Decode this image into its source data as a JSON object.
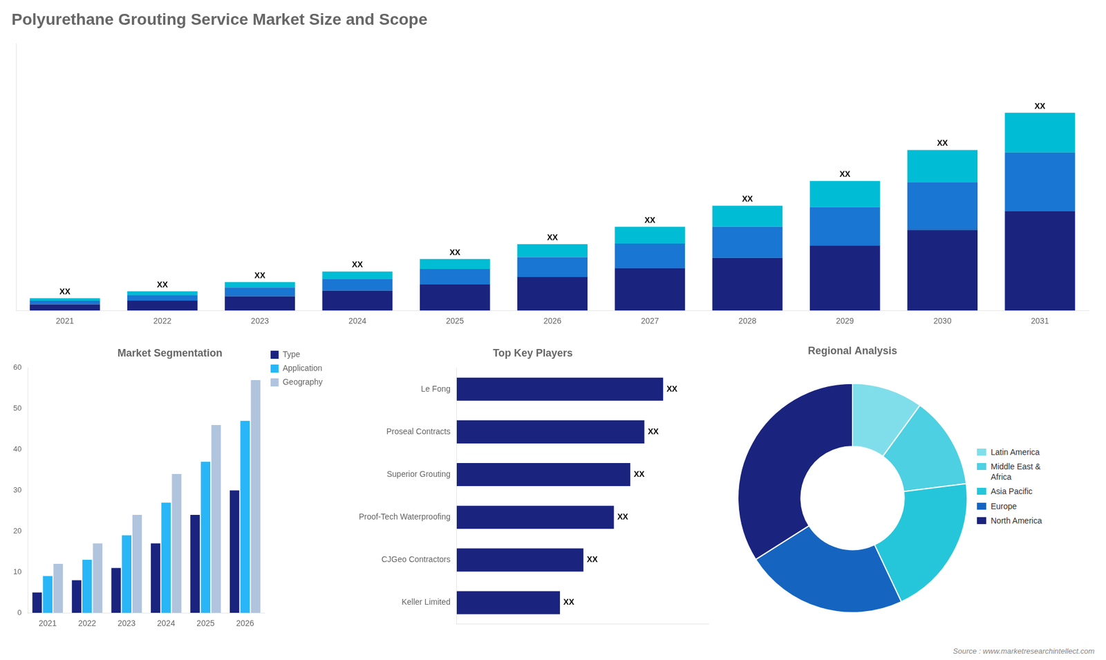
{
  "chart_data": [
    {
      "type": "bar",
      "title": "Polyurethane Grouting Service Market Size and Scope",
      "categories": [
        "2021",
        "2022",
        "2023",
        "2024",
        "2025",
        "2026",
        "2027",
        "2028",
        "2029",
        "2030",
        "2031"
      ],
      "series": [
        {
          "color": "#1a237e",
          "values": [
            1.0,
            1.6,
            2.3,
            3.2,
            4.2,
            5.4,
            6.8,
            8.5,
            10.5,
            13.0,
            16.0
          ]
        },
        {
          "color": "#1976d2",
          "values": [
            0.6,
            0.9,
            1.4,
            1.9,
            2.5,
            3.2,
            4.0,
            5.0,
            6.2,
            7.7,
            9.5
          ]
        },
        {
          "color": "#00bcd4",
          "values": [
            0.4,
            0.6,
            0.9,
            1.2,
            1.6,
            2.1,
            2.7,
            3.4,
            4.2,
            5.2,
            6.4
          ]
        }
      ],
      "stacked": true,
      "ylim": [
        0,
        43.065
      ],
      "tick_labels": "x",
      "grid": false,
      "data_labels": true,
      "value_labels": [
        "XX",
        "XX",
        "XX",
        "XX",
        "XX",
        "XX",
        "XX",
        "XX",
        "XX",
        "XX",
        "XX"
      ],
      "annotations": [
        "Source : www.marketresearchintellect.com"
      ]
    },
    {
      "type": "bar",
      "title": "Market Segmentation",
      "categories": [
        "2021",
        "2022",
        "2023",
        "2024",
        "2025",
        "2026"
      ],
      "series": [
        {
          "name": "Type",
          "color": "#1a237e",
          "values": [
            5,
            8,
            11,
            17,
            24,
            30
          ]
        },
        {
          "name": "Application",
          "color": "#29b6f6",
          "values": [
            9,
            13,
            19,
            27,
            37,
            47
          ]
        },
        {
          "name": "Geography",
          "color": "#b0c4de",
          "values": [
            12,
            17,
            24,
            34,
            46,
            57
          ]
        }
      ],
      "ylim": [
        0,
        60
      ],
      "yticks": [
        0,
        10,
        20,
        30,
        40,
        50,
        60
      ],
      "legend": "right",
      "grid": false
    },
    {
      "type": "bar",
      "orientation": "horizontal",
      "title": "Top Key Players",
      "categories": [
        "Le Fong",
        "Proseal Contracts",
        "Superior Grouting",
        "Proof-Tech Waterproofing",
        "CJGeo Contractors",
        "Keller Limited"
      ],
      "values": [
        88,
        80,
        74,
        67,
        54,
        44
      ],
      "color": "#1a237e",
      "xlim": [
        0,
        107.36
      ],
      "tick_labels": "y",
      "grid": false,
      "data_labels": true,
      "value_labels": [
        "XX",
        "XX",
        "XX",
        "XX",
        "XX",
        "XX"
      ]
    },
    {
      "type": "donut",
      "title": "Regional Analysis",
      "categories": [
        "Latin America",
        "Middle East &\nAfrica",
        "Asia Pacific",
        "Europe",
        "North America"
      ],
      "values": [
        10,
        13,
        20,
        23,
        34
      ],
      "colors": [
        "#80deea",
        "#4dd0e1",
        "#26c6da",
        "#1565c0",
        "#1a237e"
      ],
      "legend": "right"
    }
  ]
}
